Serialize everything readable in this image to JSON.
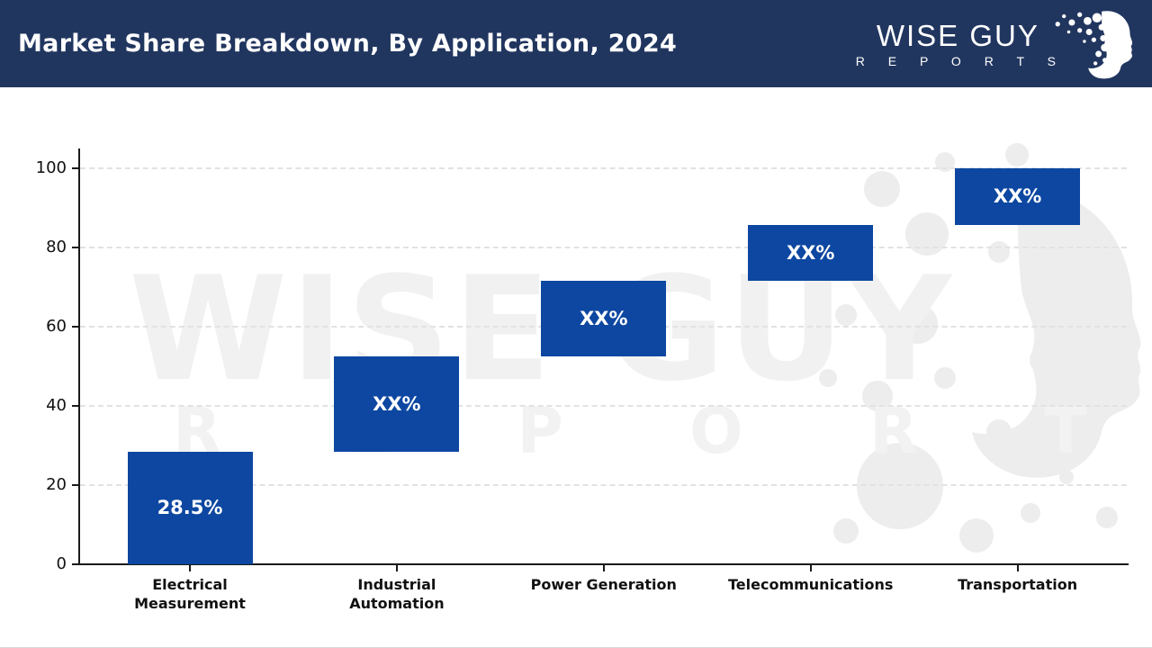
{
  "header": {
    "title": "Market Share Breakdown, By Application, 2024",
    "background_color": "#21365f",
    "text_color": "#ffffff",
    "logo": {
      "line1": "WISE GUY",
      "line2": "R E P O R T S"
    }
  },
  "watermark": {
    "line1": "WISE GUY",
    "line2": "R E P O R T S"
  },
  "chart_data": {
    "type": "bar",
    "subtype": "waterfall",
    "title": "Market Share Breakdown, By Application, 2024",
    "xlabel": "",
    "ylabel": "",
    "ylim": [
      0,
      100
    ],
    "yticks": [
      0,
      20,
      40,
      60,
      80,
      100
    ],
    "grid": true,
    "gridline_style": "dashed",
    "gridline_color": "#e2e2e2",
    "bar_color": "#0d47a1",
    "bar_label_color": "#ffffff",
    "categories": [
      [
        "Electrical",
        "Measurement"
      ],
      [
        "Industrial",
        "Automation"
      ],
      [
        "Power Generation"
      ],
      [
        "Telecommunications"
      ],
      [
        "Transportation"
      ]
    ],
    "segments": [
      {
        "category": "Electrical Measurement",
        "start": 0,
        "end": 28.5,
        "value": 28.5,
        "label": "28.5%"
      },
      {
        "category": "Industrial Automation",
        "start": 28.5,
        "end": 52.5,
        "value": 24.0,
        "label": "XX%"
      },
      {
        "category": "Power Generation",
        "start": 52.5,
        "end": 71.5,
        "value": 19.0,
        "label": "XX%"
      },
      {
        "category": "Telecommunications",
        "start": 71.5,
        "end": 85.7,
        "value": 14.2,
        "label": "XX%"
      },
      {
        "category": "Transportation",
        "start": 85.7,
        "end": 100,
        "value": 14.3,
        "label": "XX%"
      }
    ]
  }
}
